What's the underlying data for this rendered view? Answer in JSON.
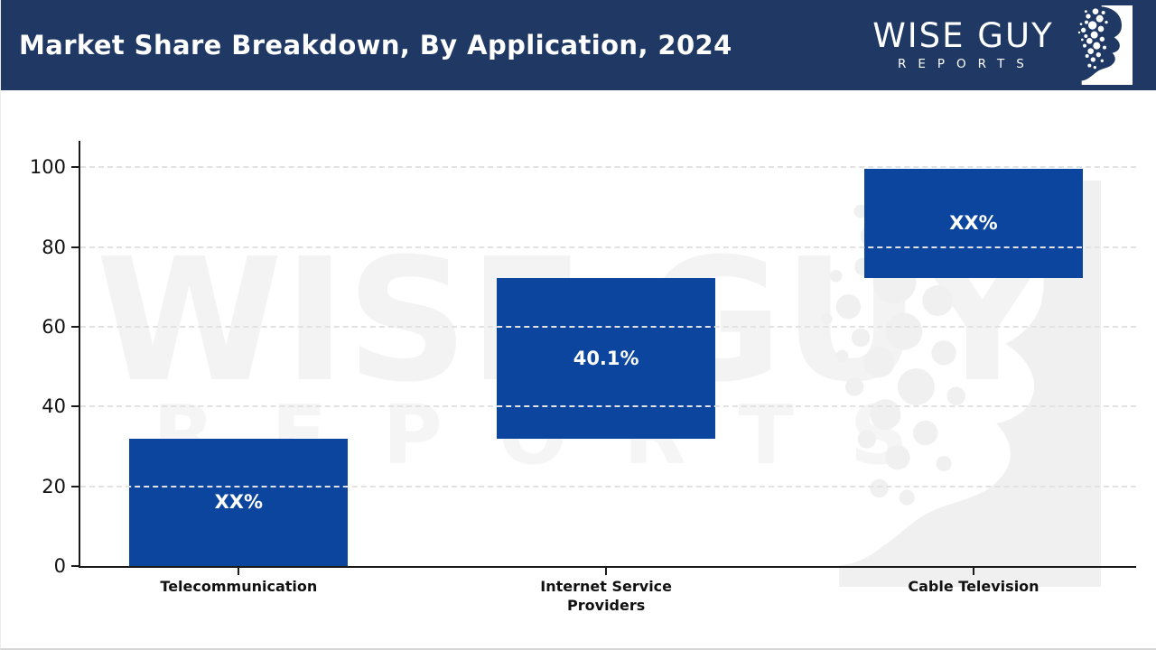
{
  "colors": {
    "header_bg": "#1f3864",
    "bar": "#0b459e",
    "axis": "#1a1a1a",
    "grid": "#e2e2e2",
    "watermark_text": "#f3f3f3",
    "bar_label_text": "#ffffff",
    "page_border": "#d6d6d6"
  },
  "header": {
    "title": "Market Share Breakdown, By Application, 2024",
    "logo": {
      "line1": "WISE GUY",
      "line2": "REPORTS",
      "face_icon": "dot-face-profile"
    }
  },
  "watermark": {
    "line1": "WISE GUY",
    "line2": "REPORTS",
    "face_icon": "dot-face-profile"
  },
  "chart_data": {
    "type": "bar",
    "subtype": "floating-segment-waterfall",
    "title": "Market Share Breakdown, By Application, 2024",
    "categories": [
      "Telecommunication",
      "Internet Service Providers",
      "Cable Television"
    ],
    "bars": [
      {
        "category": "Telecommunication",
        "from": 0,
        "to": 32,
        "label": "XX%"
      },
      {
        "category": "Internet Service Providers",
        "from": 32,
        "to": 72.1,
        "label": "40.1%"
      },
      {
        "category": "Cable Television",
        "from": 72.1,
        "to": 99.7,
        "label": "XX%"
      }
    ],
    "yticks": [
      0,
      20,
      40,
      60,
      80,
      100
    ],
    "ylim": [
      0,
      105.7
    ],
    "xlabel": "",
    "ylabel": "",
    "grid": "horizontal dashed, drawn above bars",
    "legend": "none",
    "layout": {
      "bar_centers_pct": [
        15.0,
        49.8,
        84.6
      ],
      "bar_width_pct": 20.7
    }
  }
}
